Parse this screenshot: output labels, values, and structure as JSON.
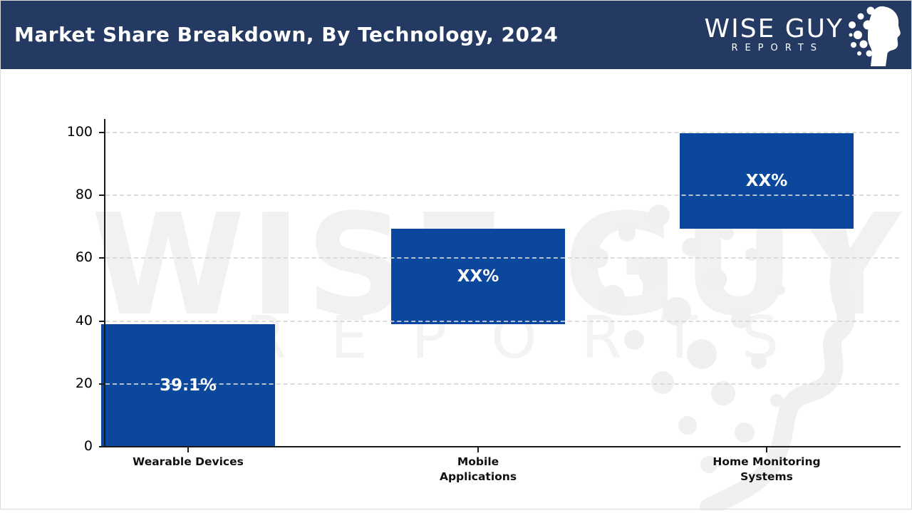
{
  "header": {
    "title": "Market Share Breakdown, By Technology, 2024",
    "logo": {
      "line1": "WISE GUY",
      "line2": "REPORTS"
    }
  },
  "watermark": {
    "line1": "WISE GUY",
    "line2": "REPORTS"
  },
  "chart_data": {
    "type": "bar",
    "subtype": "waterfall-floating-bars",
    "title": "Market Share Breakdown, By Technology, 2024",
    "categories": [
      "Wearable Devices",
      "Mobile Applications",
      "Home Monitoring Systems"
    ],
    "category_label_lines": [
      [
        "Wearable Devices"
      ],
      [
        "Mobile",
        "Applications"
      ],
      [
        "Home Monitoring",
        "Systems"
      ]
    ],
    "segments": [
      {
        "category": "Wearable Devices",
        "start": 0,
        "end": 39.1,
        "label": "39.1%"
      },
      {
        "category": "Mobile Applications",
        "start": 39.1,
        "end": 69.4,
        "label": "XX%"
      },
      {
        "category": "Home Monitoring Systems",
        "start": 69.4,
        "end": 99.8,
        "label": "XX%"
      }
    ],
    "yticks": [
      0,
      20,
      40,
      60,
      80,
      100
    ],
    "ylim": [
      0,
      104
    ],
    "xlabel": "",
    "ylabel": "",
    "grid": "horizontal-dashed",
    "legend": "none",
    "bar_color": "#0a479d",
    "bar_label_color": "#ffffff"
  },
  "colors": {
    "header_bg": "#243a63",
    "bar": "#0a479d",
    "grid": "#d6d6d6",
    "axis": "#1a1a1a",
    "watermark": "#f1f1f1",
    "title_text": "#ffffff"
  }
}
